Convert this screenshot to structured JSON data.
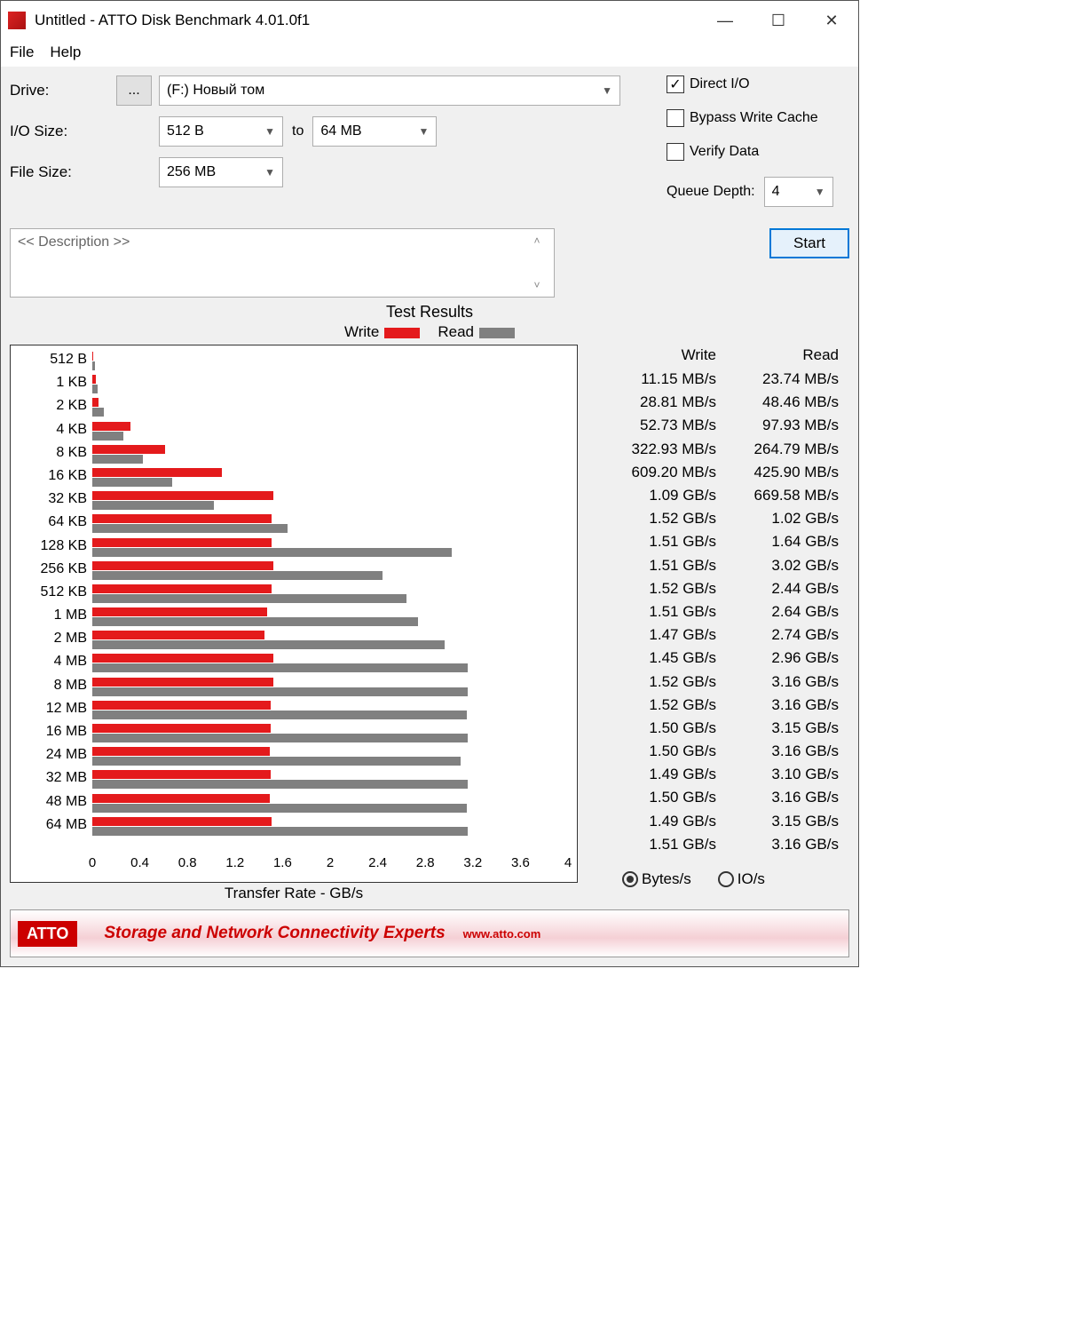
{
  "window": {
    "title": "Untitled - ATTO Disk Benchmark 4.01.0f1"
  },
  "menu": {
    "file": "File",
    "help": "Help"
  },
  "labels": {
    "drive": "Drive:",
    "iosize": "I/O Size:",
    "to": "to",
    "filesize": "File Size:",
    "directio": "Direct I/O",
    "bypass": "Bypass Write Cache",
    "verify": "Verify Data",
    "qdepth": "Queue Depth:",
    "start": "Start",
    "desc": "<< Description >>",
    "results_title": "Test Results",
    "write": "Write",
    "read": "Read",
    "xaxis": "Transfer Rate - GB/s",
    "bytes": "Bytes/s",
    "ios": "IO/s",
    "browse": "..."
  },
  "values": {
    "drive": "(F:) Новый том",
    "iosize_from": "512 B",
    "iosize_to": "64 MB",
    "filesize": "256 MB",
    "qdepth": "4",
    "directio_checked": true,
    "bypass_checked": false,
    "verify_checked": false,
    "unit_selected": "bytes"
  },
  "chart": {
    "write_color": "#e41a1c",
    "read_color": "#808080",
    "x_max_gb": 4.0,
    "x_ticks": [
      "0",
      "0.4",
      "0.8",
      "1.2",
      "1.6",
      "2",
      "2.4",
      "2.8",
      "3.2",
      "3.6",
      "4"
    ],
    "rows": [
      {
        "label": "512 B",
        "write_gb": 0.01115,
        "read_gb": 0.02374,
        "write_txt": "11.15 MB/s",
        "read_txt": "23.74 MB/s"
      },
      {
        "label": "1 KB",
        "write_gb": 0.02881,
        "read_gb": 0.04846,
        "write_txt": "28.81 MB/s",
        "read_txt": "48.46 MB/s"
      },
      {
        "label": "2 KB",
        "write_gb": 0.05273,
        "read_gb": 0.09793,
        "write_txt": "52.73 MB/s",
        "read_txt": "97.93 MB/s"
      },
      {
        "label": "4 KB",
        "write_gb": 0.32293,
        "read_gb": 0.26479,
        "write_txt": "322.93 MB/s",
        "read_txt": "264.79 MB/s"
      },
      {
        "label": "8 KB",
        "write_gb": 0.6092,
        "read_gb": 0.4259,
        "write_txt": "609.20 MB/s",
        "read_txt": "425.90 MB/s"
      },
      {
        "label": "16 KB",
        "write_gb": 1.09,
        "read_gb": 0.66958,
        "write_txt": "1.09 GB/s",
        "read_txt": "669.58 MB/s"
      },
      {
        "label": "32 KB",
        "write_gb": 1.52,
        "read_gb": 1.02,
        "write_txt": "1.52 GB/s",
        "read_txt": "1.02 GB/s"
      },
      {
        "label": "64 KB",
        "write_gb": 1.51,
        "read_gb": 1.64,
        "write_txt": "1.51 GB/s",
        "read_txt": "1.64 GB/s"
      },
      {
        "label": "128 KB",
        "write_gb": 1.51,
        "read_gb": 3.02,
        "write_txt": "1.51 GB/s",
        "read_txt": "3.02 GB/s"
      },
      {
        "label": "256 KB",
        "write_gb": 1.52,
        "read_gb": 2.44,
        "write_txt": "1.52 GB/s",
        "read_txt": "2.44 GB/s"
      },
      {
        "label": "512 KB",
        "write_gb": 1.51,
        "read_gb": 2.64,
        "write_txt": "1.51 GB/s",
        "read_txt": "2.64 GB/s"
      },
      {
        "label": "1 MB",
        "write_gb": 1.47,
        "read_gb": 2.74,
        "write_txt": "1.47 GB/s",
        "read_txt": "2.74 GB/s"
      },
      {
        "label": "2 MB",
        "write_gb": 1.45,
        "read_gb": 2.96,
        "write_txt": "1.45 GB/s",
        "read_txt": "2.96 GB/s"
      },
      {
        "label": "4 MB",
        "write_gb": 1.52,
        "read_gb": 3.16,
        "write_txt": "1.52 GB/s",
        "read_txt": "3.16 GB/s"
      },
      {
        "label": "8 MB",
        "write_gb": 1.52,
        "read_gb": 3.16,
        "write_txt": "1.52 GB/s",
        "read_txt": "3.16 GB/s"
      },
      {
        "label": "12 MB",
        "write_gb": 1.5,
        "read_gb": 3.15,
        "write_txt": "1.50 GB/s",
        "read_txt": "3.15 GB/s"
      },
      {
        "label": "16 MB",
        "write_gb": 1.5,
        "read_gb": 3.16,
        "write_txt": "1.50 GB/s",
        "read_txt": "3.16 GB/s"
      },
      {
        "label": "24 MB",
        "write_gb": 1.49,
        "read_gb": 3.1,
        "write_txt": "1.49 GB/s",
        "read_txt": "3.10 GB/s"
      },
      {
        "label": "32 MB",
        "write_gb": 1.5,
        "read_gb": 3.16,
        "write_txt": "1.50 GB/s",
        "read_txt": "3.16 GB/s"
      },
      {
        "label": "48 MB",
        "write_gb": 1.49,
        "read_gb": 3.15,
        "write_txt": "1.49 GB/s",
        "read_txt": "3.15 GB/s"
      },
      {
        "label": "64 MB",
        "write_gb": 1.51,
        "read_gb": 3.16,
        "write_txt": "1.51 GB/s",
        "read_txt": "3.16 GB/s"
      }
    ]
  },
  "banner": {
    "logo": "ATTO",
    "text": "Storage and Network Connectivity Experts",
    "sub": "www.atto.com"
  }
}
